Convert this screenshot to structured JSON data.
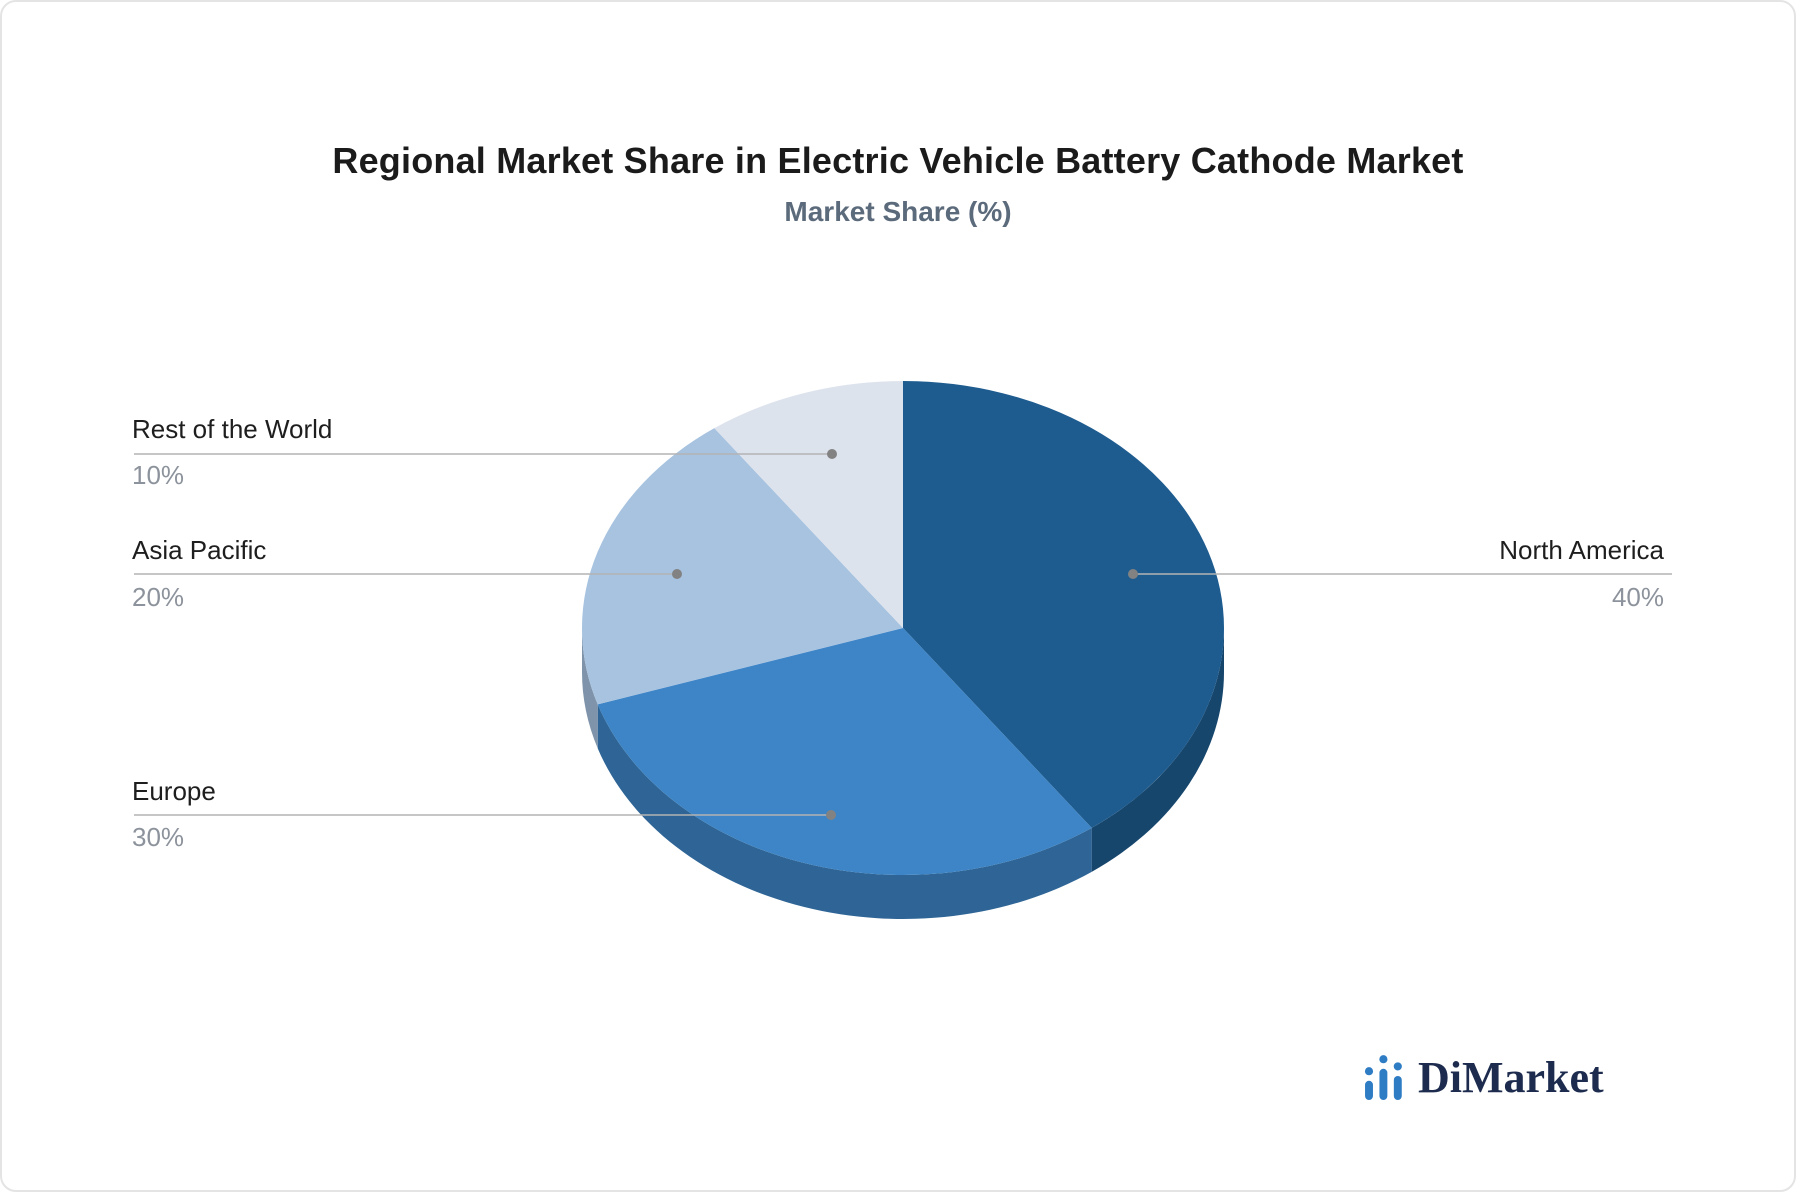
{
  "chart_data": {
    "type": "pie",
    "style": "3d",
    "title": "Regional Market Share in Electric Vehicle Battery Cathode Market",
    "subtitle": "Market Share (%)",
    "unit": "%",
    "start_angle_deg": 0,
    "direction": "clockwise",
    "labels": [
      "North America",
      "Europe",
      "Asia Pacific",
      "Rest of the World"
    ],
    "values": [
      40,
      30,
      20,
      10
    ],
    "display_values": [
      "40%",
      "30%",
      "20%",
      "10%"
    ],
    "colors": [
      "#1e5c90",
      "#3d85c6",
      "#a7c3e0",
      "#dde3ed"
    ],
    "legend": "none",
    "callout_line_color": "#b3b3b3",
    "callout_dot_color": "#828282"
  },
  "branding": {
    "logo_text": "DiMarket",
    "logo_text_color": "#1d2c4e",
    "logo_icon_color": "#2e7cc4"
  }
}
